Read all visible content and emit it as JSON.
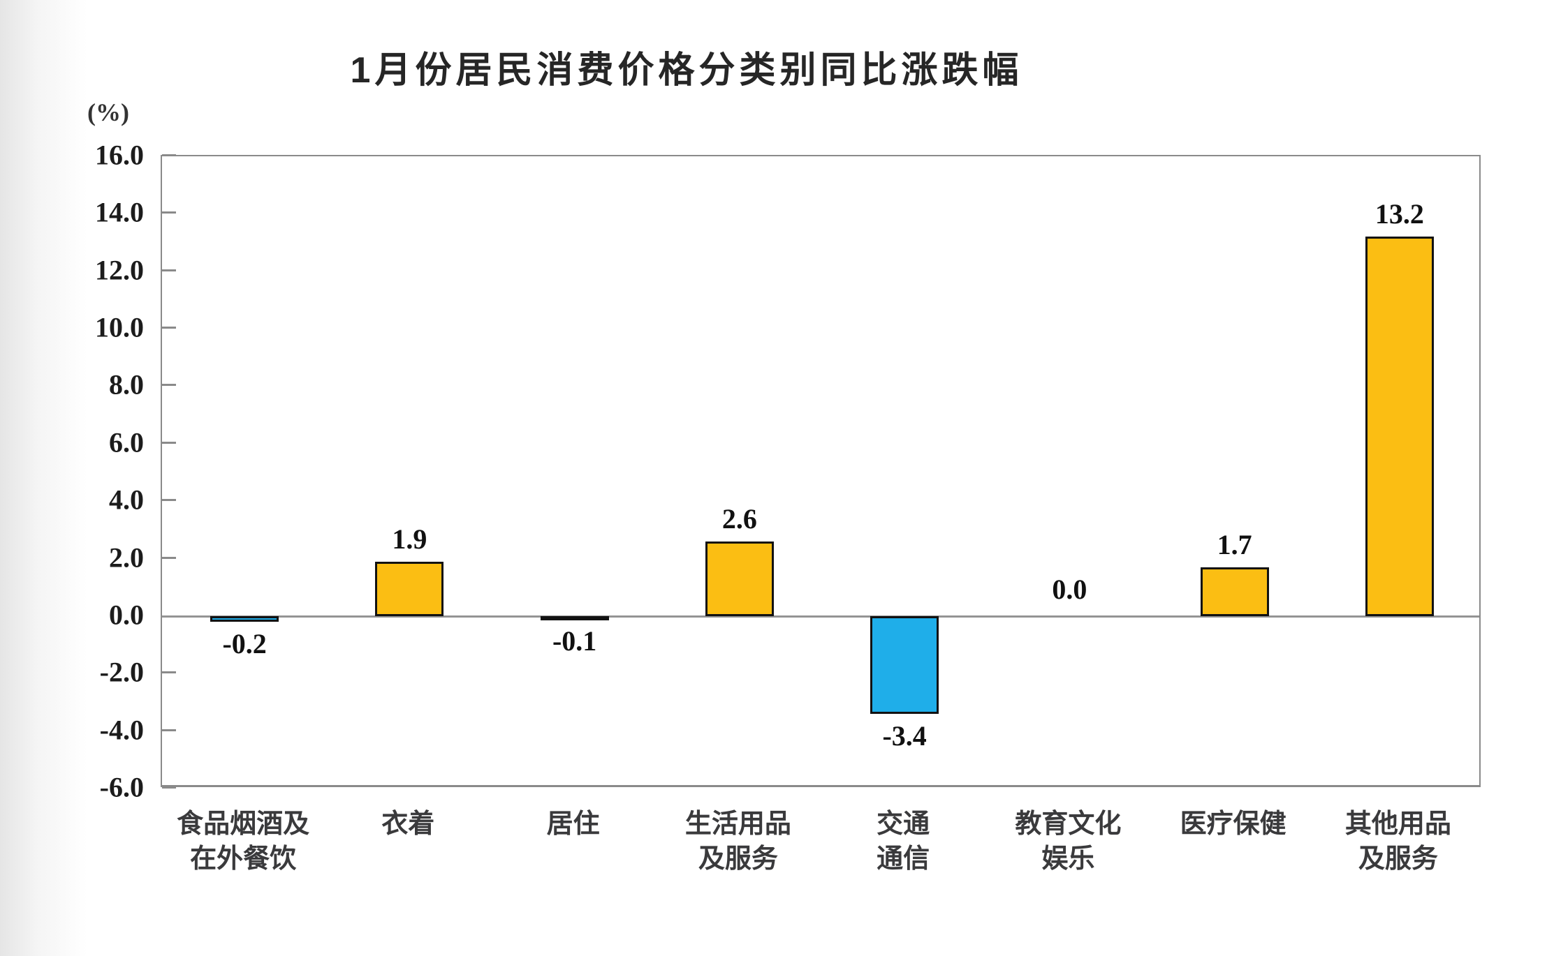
{
  "title": "1月份居民消费价格分类别同比涨跌幅",
  "axis_unit_label": "(%)",
  "chart_data": {
    "type": "bar",
    "title": "1月份居民消费价格分类别同比涨跌幅",
    "ylabel": "(%)",
    "xlabel": "",
    "categories": [
      "食品烟酒及在外餐饮",
      "衣着",
      "居住",
      "生活用品及服务",
      "交通通信",
      "教育文化娱乐",
      "医疗保健",
      "其他用品及服务"
    ],
    "category_label_lines": [
      [
        "食品烟酒及",
        "在外餐饮"
      ],
      [
        "衣着"
      ],
      [
        "居住"
      ],
      [
        "生活用品",
        "及服务"
      ],
      [
        "交通",
        "通信"
      ],
      [
        "教育文化",
        "娱乐"
      ],
      [
        "医疗保健"
      ],
      [
        "其他用品",
        "及服务"
      ]
    ],
    "values": [
      -0.2,
      1.9,
      -0.1,
      2.6,
      -3.4,
      0.0,
      1.7,
      13.2
    ],
    "value_labels": [
      "-0.2",
      "1.9",
      "-0.1",
      "2.6",
      "-3.4",
      "0.0",
      "1.7",
      "13.2"
    ],
    "ylim": [
      -6.0,
      16.0
    ],
    "ytick_step": 2.0,
    "ytick_labels": [
      "16.0",
      "14.0",
      "12.0",
      "10.0",
      "8.0",
      "6.0",
      "4.0",
      "2.0",
      "0.0",
      "-2.0",
      "-4.0",
      "-6.0"
    ],
    "grid": false,
    "legend": "none",
    "colors": {
      "bar_positive": "#FBBE13",
      "bar_negative": "#1FAEE9",
      "bar_border": "#121212",
      "axis_border": "#8A8A8A",
      "tick_mark": "#8A8A8A",
      "zero_line": "#949494",
      "title_text": "#262626",
      "label_text": "#111111",
      "category_text": "#3A3A3C"
    }
  }
}
